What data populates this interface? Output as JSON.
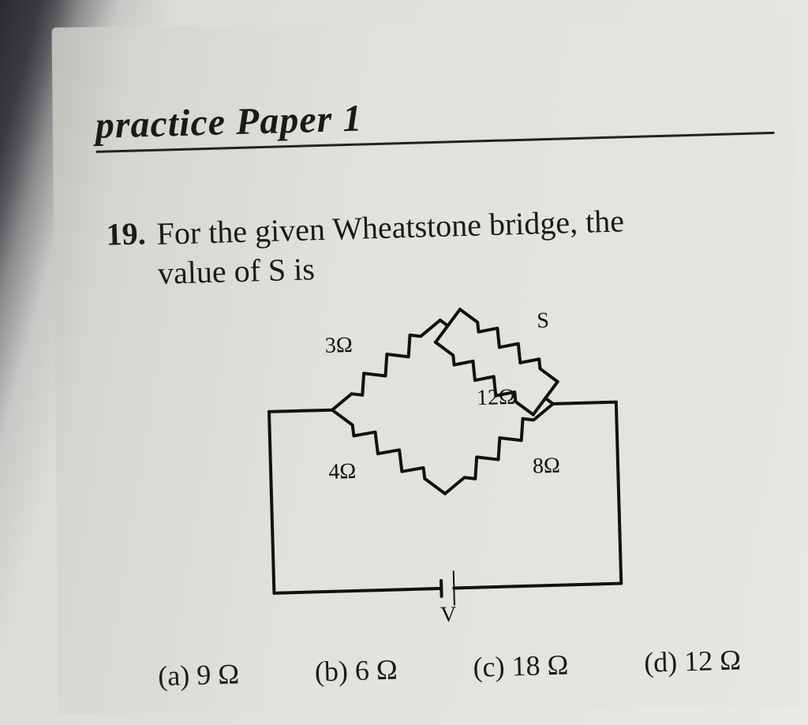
{
  "page": {
    "heading": "practice Paper 1",
    "question_number": "19.",
    "question_text_line1": "For the given Wheatstone bridge, the",
    "question_text_line2": "value of S is"
  },
  "circuit": {
    "topLeftResistor": "3Ω",
    "topRightParallelInner": "12Ω",
    "topRightParallelOuter": "S",
    "bottomLeftResistor": "4Ω",
    "bottomRightResistor": "8Ω",
    "source": "V",
    "stroke": "#111",
    "strokeWidth": 4,
    "textColor": "#111",
    "resistorFontSize": 28
  },
  "options": {
    "a": "(a) 9 Ω",
    "b": "(b) 6 Ω",
    "c": "(c) 18 Ω",
    "d": "(d) 12 Ω"
  }
}
